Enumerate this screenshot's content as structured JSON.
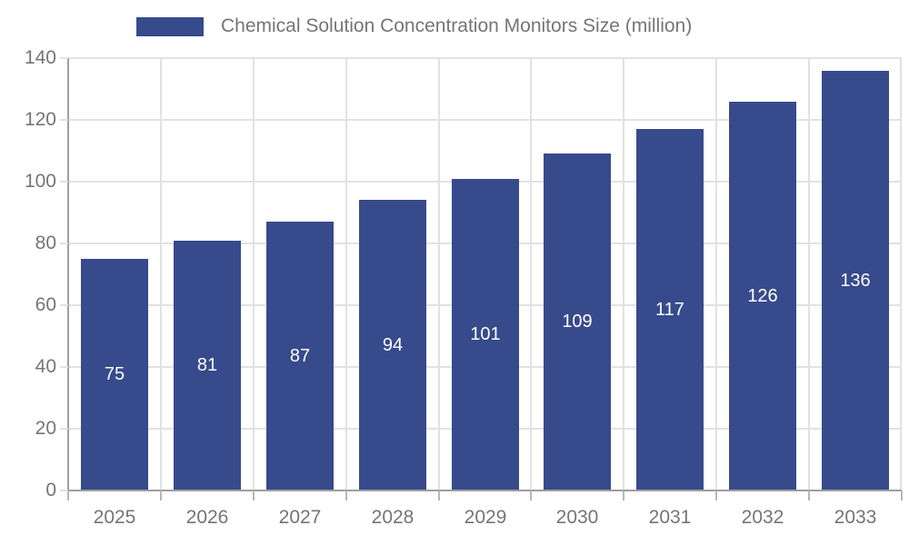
{
  "chart_data": {
    "type": "bar",
    "title": "Chemical Solution Concentration Monitors Size (million)",
    "legend": [
      "Chemical Solution Concentration Monitors Size (million)"
    ],
    "legend_position": "top",
    "categories": [
      "2025",
      "2026",
      "2027",
      "2028",
      "2029",
      "2030",
      "2031",
      "2032",
      "2033"
    ],
    "values": [
      75,
      81,
      87,
      94,
      101,
      109,
      117,
      126,
      136
    ],
    "xlabel": "",
    "ylabel": "",
    "ylim": [
      0,
      140
    ],
    "yticks": [
      0,
      20,
      40,
      60,
      80,
      100,
      120,
      140
    ],
    "grid": true,
    "value_labels": "centered-inside-bars",
    "colors": {
      "bar": "#374a8b",
      "grid": "#e2e2e2",
      "axis": "#9e9e9e",
      "tick_text": "#757575",
      "value_text": "#ffffff",
      "background": "#ffffff"
    }
  }
}
